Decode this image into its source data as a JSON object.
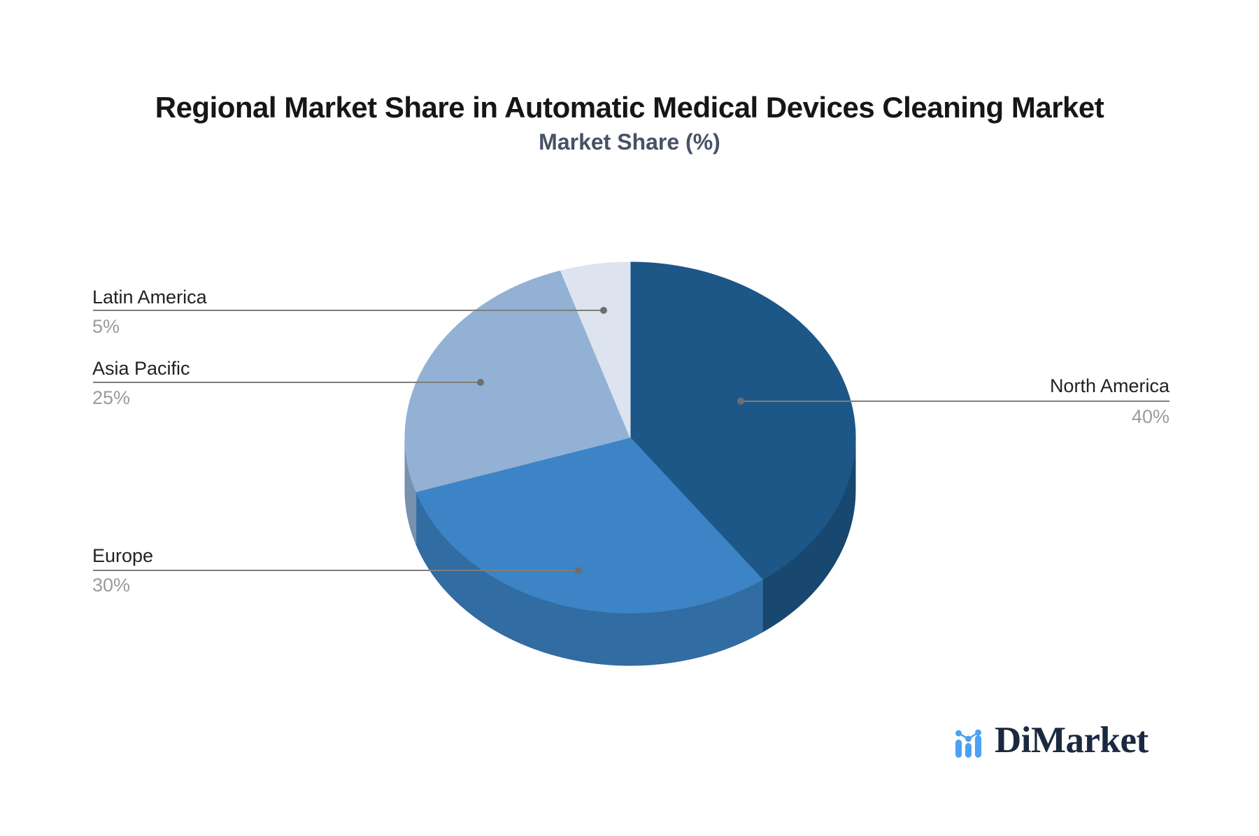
{
  "header": {
    "title": "Regional Market Share in Automatic Medical Devices Cleaning Market",
    "subtitle": "Market Share (%)"
  },
  "chart_data": {
    "type": "pie",
    "style": "3d",
    "title": "Regional Market Share in Automatic Medical Devices Cleaning Market",
    "subtitle": "Market Share (%)",
    "unit": "%",
    "categories": [
      "North America",
      "Europe",
      "Asia Pacific",
      "Latin America"
    ],
    "values": [
      40,
      30,
      25,
      5
    ],
    "value_labels": [
      "40%",
      "30%",
      "25%",
      "5%"
    ],
    "colors": [
      "#1d5787",
      "#3c84c5",
      "#92b1d5",
      "#dde4ef"
    ],
    "legend_position": "callout-labels",
    "rotation_start": "top",
    "direction": "clockwise"
  },
  "callouts": [
    {
      "id": "north-america",
      "label": "North America",
      "value_label": "40%",
      "side": "right"
    },
    {
      "id": "europe",
      "label": "Europe",
      "value_label": "30%",
      "side": "left"
    },
    {
      "id": "asia-pacific",
      "label": "Asia Pacific",
      "value_label": "25%",
      "side": "left"
    },
    {
      "id": "latin-america",
      "label": "Latin America",
      "value_label": "5%",
      "side": "left"
    }
  ],
  "logo": {
    "text": "DiMarket",
    "icon": "bar-chart-logo-icon",
    "text_color": "#1b2940",
    "icon_color": "#4da1f2"
  },
  "style_colors": {
    "leader_line": "#7e7e7e",
    "leader_dot": "#6e6e6e",
    "label_text": "#222222",
    "value_text": "#9b9b9b",
    "title_text": "#161616",
    "subtitle_text": "#475266"
  }
}
